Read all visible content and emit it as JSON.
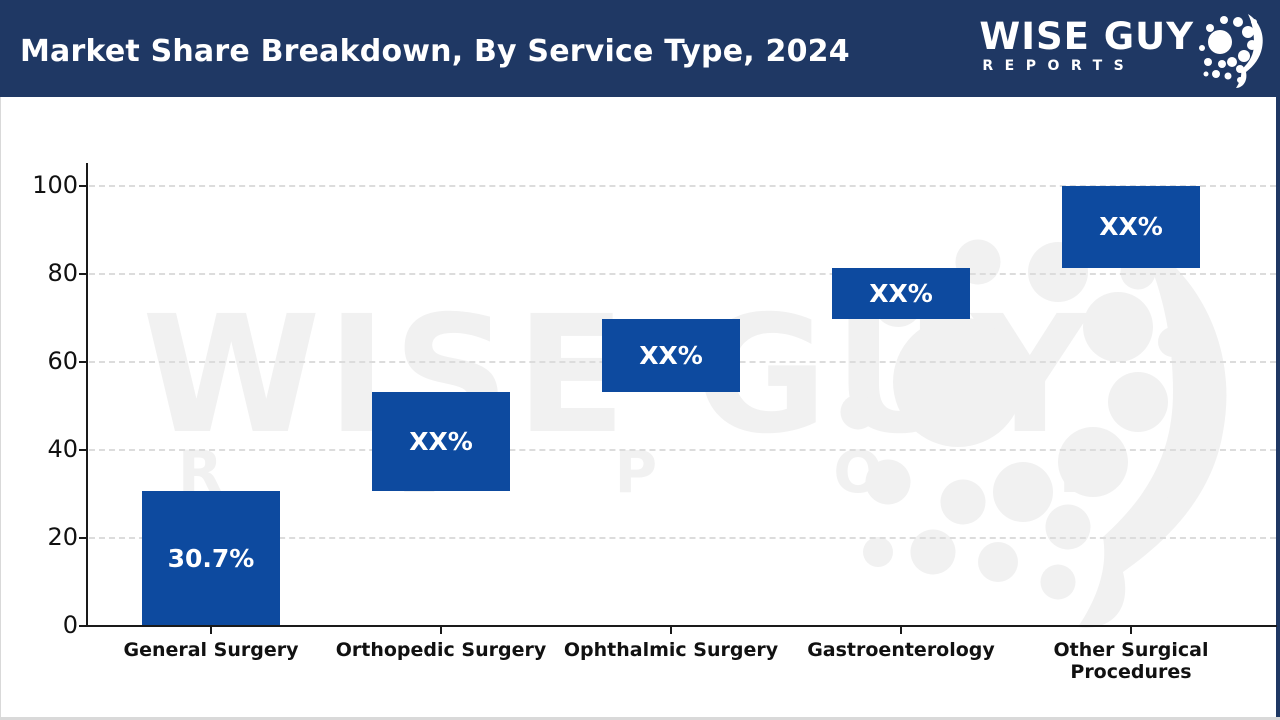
{
  "header": {
    "title": "Market Share Breakdown, By Service Type, 2024",
    "logo_line1": "WISE GUY",
    "logo_line2": "REPORTS"
  },
  "watermark": {
    "line1": "WISE GUY",
    "line2": "R E P O R T S"
  },
  "colors": {
    "header_bg": "#1f3864",
    "bar": "#0d4a9f",
    "grid": "#dcdcdc",
    "axis": "#1a1a1a",
    "label_text": "#111111",
    "bar_label_text": "#ffffff",
    "watermark": "#f1f1f1"
  },
  "chart_data": {
    "type": "bar",
    "subtype": "waterfall",
    "title": "Market Share Breakdown, By Service Type, 2024",
    "categories": [
      "General Surgery",
      "Orthopedic Surgery",
      "Ophthalmic Surgery",
      "Gastroenterology",
      "Other Surgical Procedures"
    ],
    "bars": [
      {
        "category": "General Surgery",
        "start": 0,
        "end": 30.7,
        "label": "30.7%"
      },
      {
        "category": "Orthopedic Surgery",
        "start": 30.7,
        "end": 53.2,
        "label": "XX%"
      },
      {
        "category": "Ophthalmic Surgery",
        "start": 53.2,
        "end": 69.8,
        "label": "XX%"
      },
      {
        "category": "Gastroenterology",
        "start": 69.8,
        "end": 81.4,
        "label": "XX%"
      },
      {
        "category": "Other Surgical Procedures",
        "start": 81.4,
        "end": 100,
        "label": "XX%"
      }
    ],
    "ylim": [
      0,
      100
    ],
    "yticks": [
      0,
      20,
      40,
      60,
      80,
      100
    ],
    "xlabel": "",
    "ylabel": "",
    "grid": "horizontal-dashed",
    "legend": "none"
  }
}
